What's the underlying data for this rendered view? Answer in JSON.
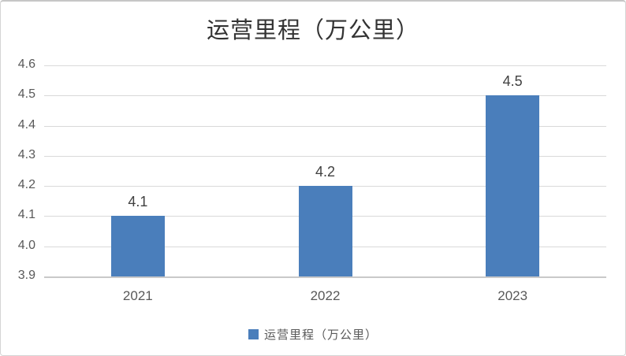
{
  "chart_data": {
    "type": "bar",
    "title": "运营里程（万公里）",
    "categories": [
      "2021",
      "2022",
      "2023"
    ],
    "series": [
      {
        "name": "运营里程（万公里）",
        "values": [
          4.1,
          4.2,
          4.5
        ]
      }
    ],
    "data_labels": [
      "4.1",
      "4.2",
      "4.5"
    ],
    "y_ticks": [
      "4.6",
      "4.5",
      "4.4",
      "4.3",
      "4.2",
      "4.1",
      "4.0",
      "3.9"
    ],
    "ylim": [
      3.9,
      4.6
    ],
    "grid": true,
    "legend_position": "bottom",
    "bar_color": "#4A7EBB",
    "gridline_color": "#d9d9d9"
  }
}
